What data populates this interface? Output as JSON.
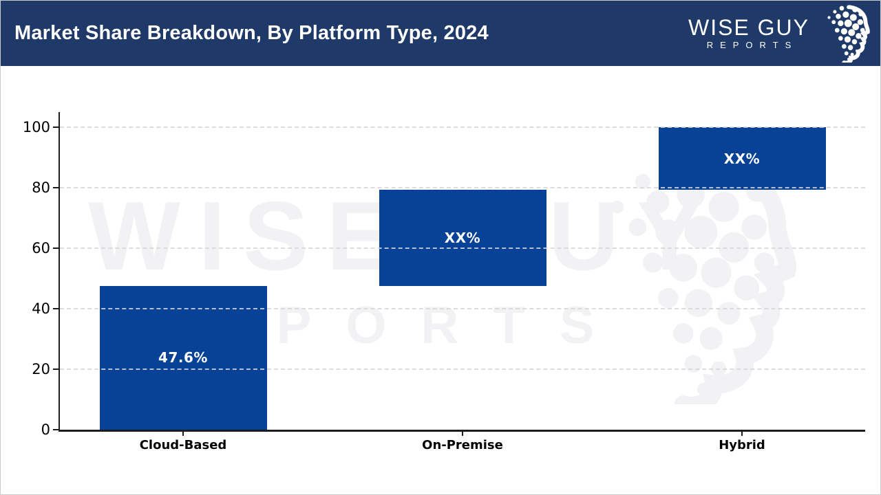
{
  "header": {
    "title": "Market Share Breakdown, By Platform Type, 2024",
    "bg_color": "#1f3a68",
    "logo": {
      "line1": "WISE GUY",
      "line2": "REPORTS"
    }
  },
  "watermark": {
    "line1": "WISE GUY",
    "line2": "REPORTS"
  },
  "chart_data": {
    "type": "bar",
    "variant": "waterfall",
    "categories": [
      "Cloud-Based",
      "On-Premise",
      "Hybrid"
    ],
    "series": [
      {
        "name": "Market Share %",
        "segments": [
          {
            "category": "Cloud-Based",
            "start": 0,
            "end": 47.6,
            "label": "47.6%"
          },
          {
            "category": "On-Premise",
            "start": 47.6,
            "end": 79.3,
            "label": "XX%"
          },
          {
            "category": "Hybrid",
            "start": 79.3,
            "end": 100,
            "label": "XX%"
          }
        ]
      }
    ],
    "y_ticks": [
      0,
      20,
      40,
      60,
      80,
      100
    ],
    "ylim": [
      0,
      105
    ],
    "grid": "horizontal-dashed",
    "legend": "none",
    "bar_color": "#084296",
    "bar_label_color": "#ffffff",
    "axis_color": "#1c1c1c",
    "gridline_color": "#d6d6d6"
  }
}
